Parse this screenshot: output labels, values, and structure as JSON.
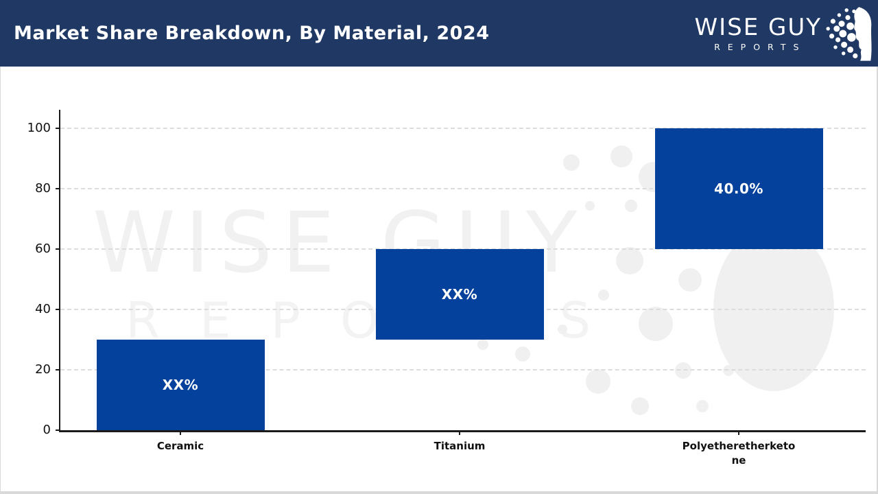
{
  "header": {
    "title": "Market Share Breakdown, By Material, 2024",
    "bg_color": "#1f3864",
    "logo": {
      "wordmark": "WISE GUY",
      "subtext": "REPORTS"
    }
  },
  "watermark": {
    "wordmark": "WISE GUY",
    "subtext": "REPORTS"
  },
  "chart_data": {
    "type": "bar",
    "subtype": "waterfall",
    "title": "Market Share Breakdown, By Material, 2024",
    "categories": [
      "Ceramic",
      "Titanium",
      "Polyetheretherketone"
    ],
    "xtick_display_labels": [
      "Ceramic",
      "Titanium",
      "Polyetheretherketo\nne"
    ],
    "bars": [
      {
        "category": "Ceramic",
        "start": 0,
        "end": 30,
        "value": 30,
        "label": "XX%"
      },
      {
        "category": "Titanium",
        "start": 30,
        "end": 60,
        "value": 30,
        "label": "XX%"
      },
      {
        "category": "Polyetheretherketone",
        "start": 60,
        "end": 100,
        "value": 40,
        "label": "40.0%"
      }
    ],
    "xlabel": "",
    "ylabel": "",
    "ylim": [
      0,
      100
    ],
    "yticks": [
      0,
      20,
      40,
      60,
      80,
      100
    ],
    "grid": {
      "horizontal": true,
      "style": "dashed",
      "color": "#dcdcdc"
    },
    "legend": null,
    "bar_color": "#04419c",
    "bar_label_color": "#ffffff",
    "axis_color": "#1a1a1a"
  }
}
